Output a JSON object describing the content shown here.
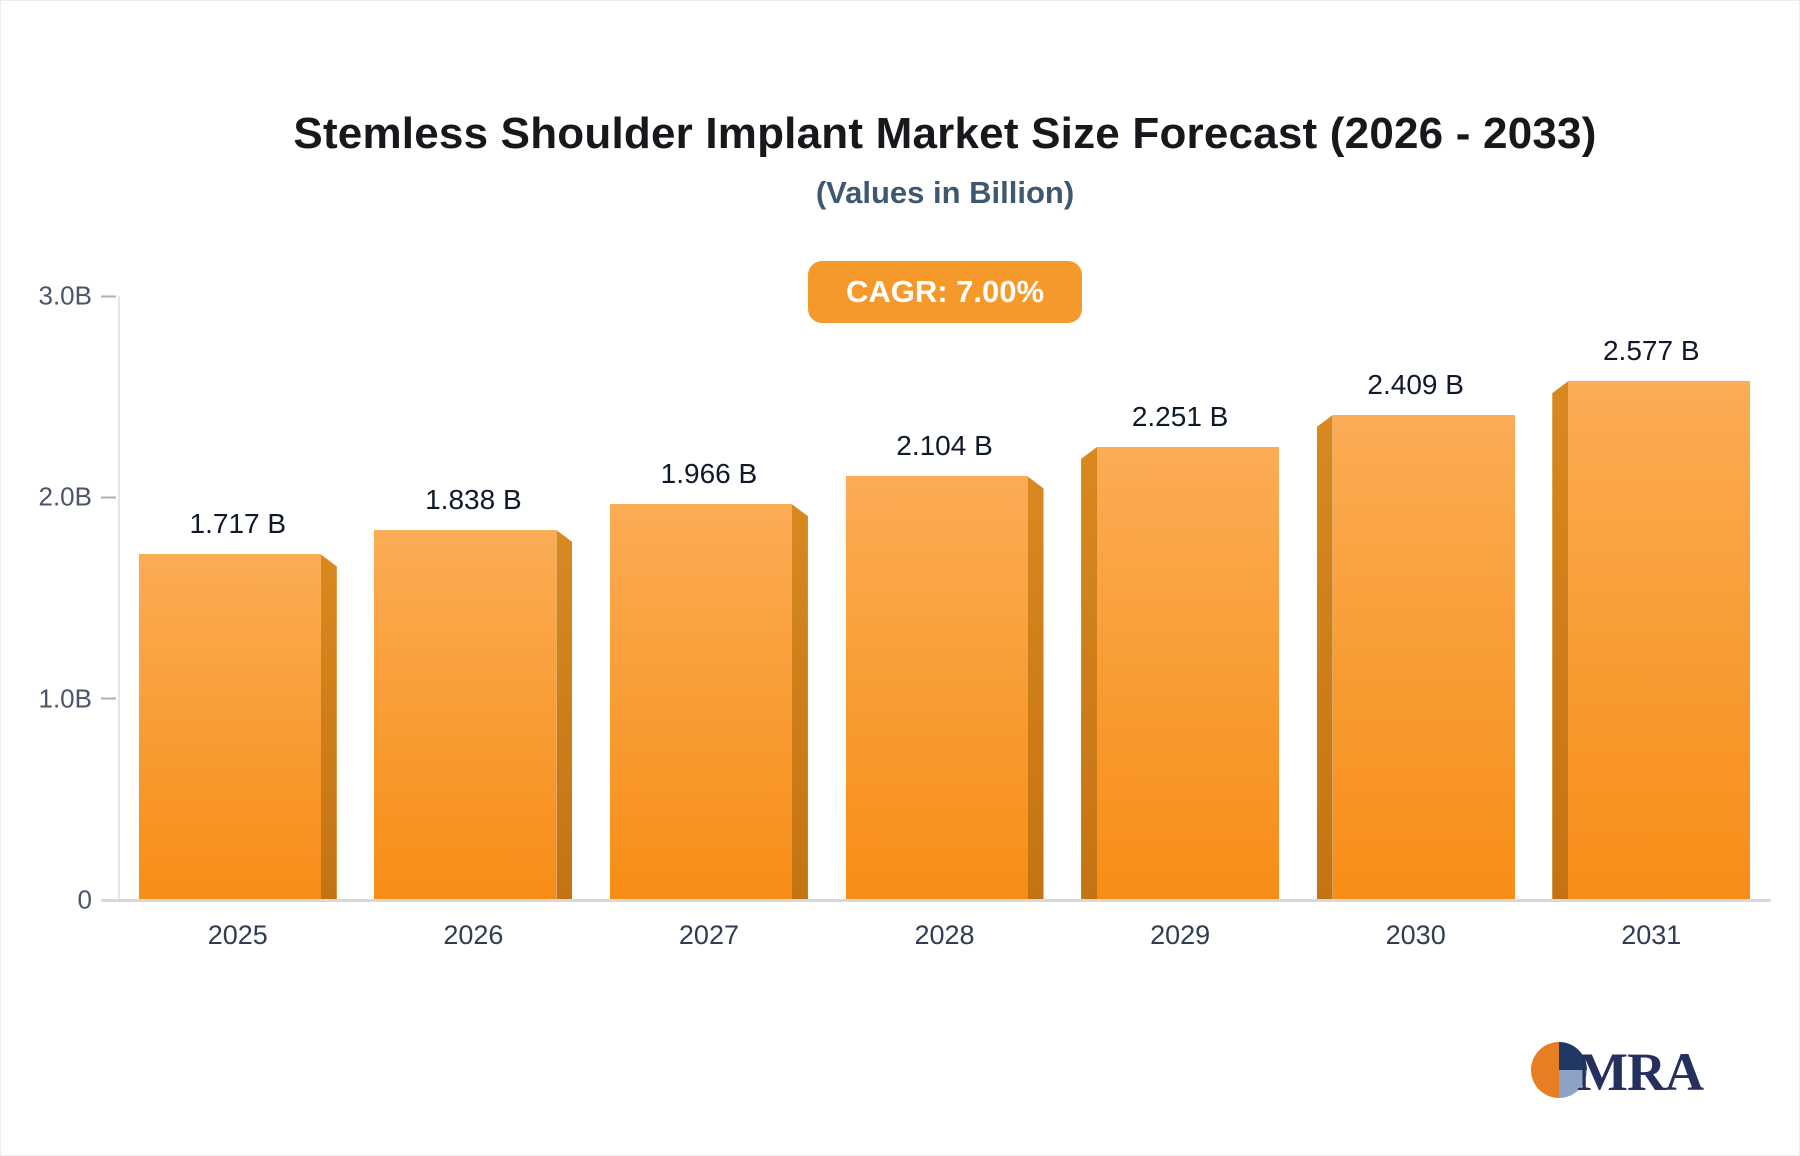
{
  "title": "Stemless Shoulder Implant Market Size Forecast (2026 - 2033)",
  "subtitle": "(Values in Billion)",
  "badge": {
    "label": "CAGR: 7.00%",
    "bg_color": "#F6992B",
    "text_color": "#FFFFFF"
  },
  "logo": {
    "text": "MRA",
    "icon": "pie-globe-icon",
    "colors": {
      "orange": "#E87E23",
      "navy": "#1F3864",
      "slate_blue": "#8CA3C6",
      "text_navy": "#26305F"
    }
  },
  "chart_data": {
    "type": "bar",
    "title": "Stemless Shoulder Implant Market Size Forecast (2026 - 2033)",
    "subtitle": "(Values in Billion)",
    "annotation": "CAGR: 7.00%",
    "categories": [
      "2025",
      "2026",
      "2027",
      "2028",
      "2029",
      "2030",
      "2031"
    ],
    "values": [
      1.717,
      1.838,
      1.966,
      2.104,
      2.251,
      2.409,
      2.577
    ],
    "value_labels": [
      "1.717 B",
      "1.838 B",
      "1.966 B",
      "2.104 B",
      "2.251 B",
      "2.409 B",
      "2.577 B"
    ],
    "xlabel": "",
    "ylabel": "",
    "ylim": [
      0,
      3
    ],
    "yticks": [
      {
        "value": 0,
        "label": "0"
      },
      {
        "value": 1,
        "label": "1.0B"
      },
      {
        "value": 2,
        "label": "2.0B"
      },
      {
        "value": 3,
        "label": "3.0B"
      }
    ],
    "grid": false,
    "legend": "none",
    "bar_color_top": "#FBAC55",
    "bar_color_bottom": "#F78D15",
    "bar_side_color": "#C9781A"
  }
}
